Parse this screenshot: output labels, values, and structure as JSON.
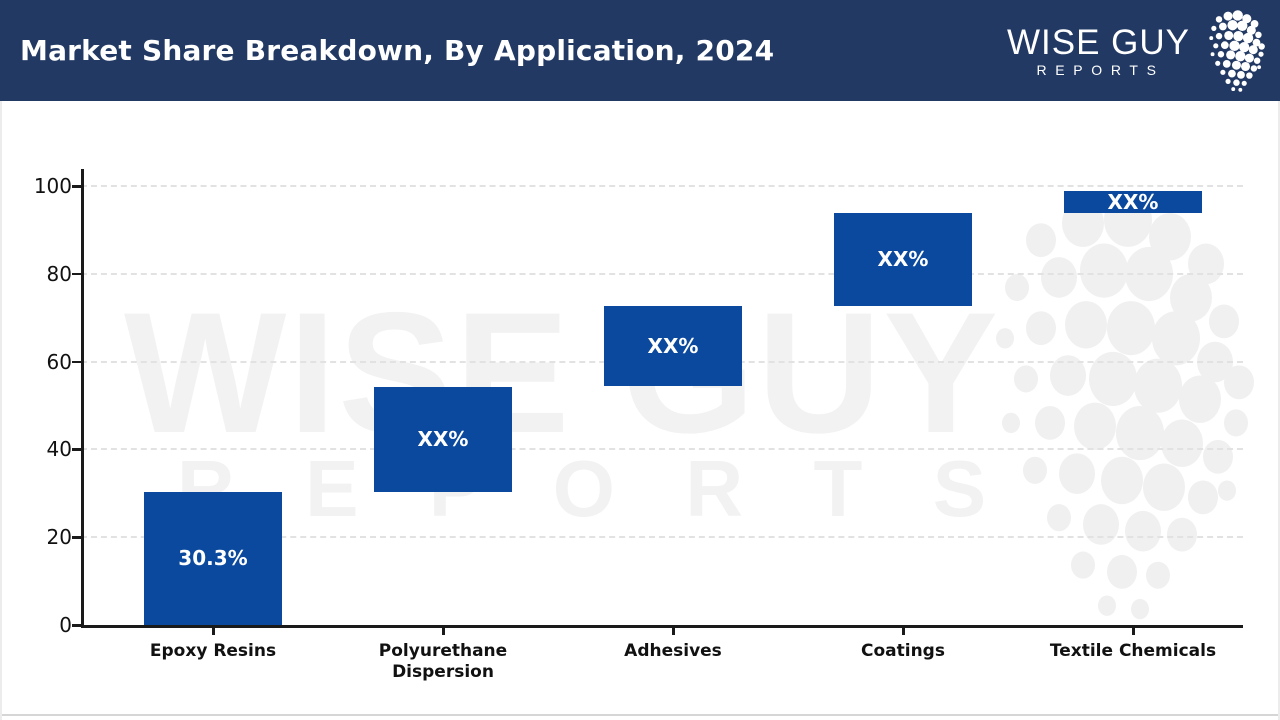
{
  "header": {
    "title": "Market Share Breakdown, By Application, 2024",
    "logo": {
      "line1": "WISE GUY",
      "line2": "REPORTS"
    }
  },
  "watermark": {
    "line1": "WISE GUY",
    "line2": "REPORTS"
  },
  "colors": {
    "header_bg": "#223964",
    "bar": "#0b499e",
    "bar_label": "#ffffff",
    "gridline": "#e2e2e2",
    "axis": "#1a1a1a",
    "watermark": "#f2f2f2"
  },
  "chart_data": {
    "type": "bar",
    "subtype": "waterfall",
    "title": "Market Share Breakdown, By Application, 2024",
    "categories": [
      "Epoxy Resins",
      "Polyurethane Dispersion",
      "Adhesives",
      "Coatings",
      "Textile Chemicals"
    ],
    "series": [
      {
        "name": "Market Share (%)",
        "segments": [
          {
            "start": 0,
            "end": 30.3,
            "label": "30.3%"
          },
          {
            "start": 30.3,
            "end": 54.3,
            "label": "XX%"
          },
          {
            "start": 54.5,
            "end": 72.7,
            "label": "XX%"
          },
          {
            "start": 72.7,
            "end": 93.9,
            "label": "XX%"
          },
          {
            "start": 93.9,
            "end": 98.9,
            "label": "XX%"
          }
        ]
      }
    ],
    "xlabel": "",
    "ylabel": "",
    "yticks": [
      0,
      20,
      40,
      60,
      80,
      100
    ],
    "ylim": [
      0,
      104
    ],
    "grid": "horizontal-dashed",
    "legend": "none"
  }
}
